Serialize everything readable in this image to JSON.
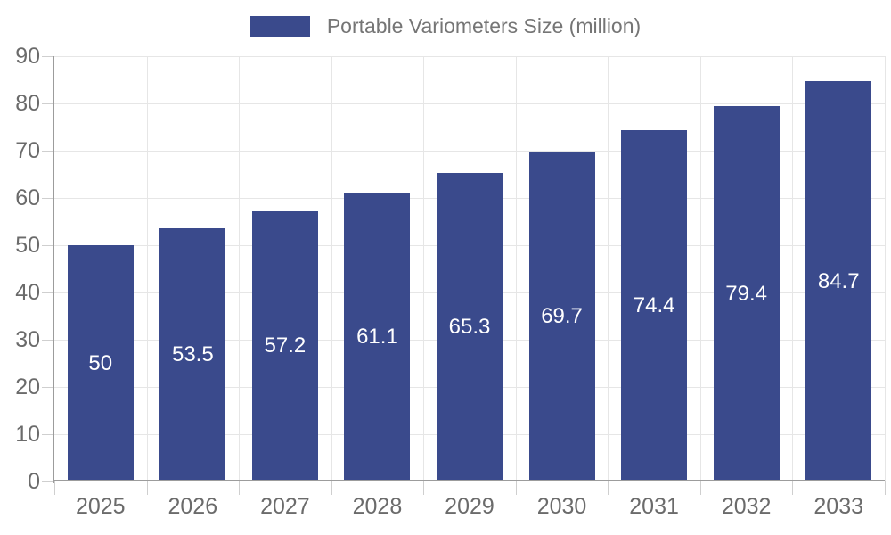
{
  "chart_data": {
    "type": "bar",
    "title": "Portable Variometers Size (million)",
    "categories": [
      "2025",
      "2026",
      "2027",
      "2028",
      "2029",
      "2030",
      "2031",
      "2032",
      "2033"
    ],
    "values": [
      50,
      53.5,
      57.2,
      61.1,
      65.3,
      69.7,
      74.4,
      79.4,
      84.7
    ],
    "series": [
      {
        "name": "Portable Variometers Size (million)",
        "values": [
          50,
          53.5,
          57.2,
          61.1,
          65.3,
          69.7,
          74.4,
          79.4,
          84.7
        ]
      }
    ],
    "xlabel": "",
    "ylabel": "",
    "ylim": [
      0,
      90
    ],
    "yticks": [
      0,
      10,
      20,
      30,
      40,
      50,
      60,
      70,
      80,
      90
    ],
    "grid": true,
    "legend_position": "top-center",
    "value_labels_inside_bars": true,
    "colors": {
      "bar": "#3A4A8C",
      "value_label": "#FFFFFF",
      "axis_line": "#9C9C9C",
      "gridline": "#E6E6E6",
      "tick": "#CFCFCF",
      "tick_label": "#6B6B6B",
      "legend_text": "#757575",
      "background": "#FFFFFF"
    }
  }
}
